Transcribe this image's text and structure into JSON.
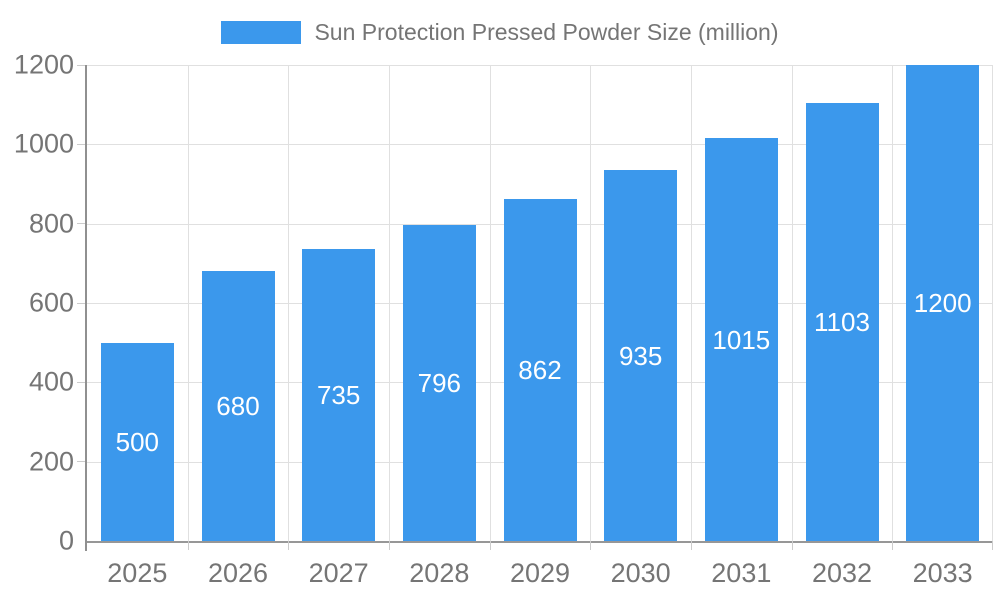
{
  "chart_data": {
    "type": "bar",
    "title": "Sun Protection Pressed Powder Size (million)",
    "categories": [
      "2025",
      "2026",
      "2027",
      "2028",
      "2029",
      "2030",
      "2031",
      "2032",
      "2033"
    ],
    "values": [
      500,
      680,
      735,
      796,
      862,
      935,
      1015,
      1103,
      1200
    ],
    "xlabel": "",
    "ylabel": "",
    "ylim": [
      0,
      1200
    ],
    "yticks": [
      0,
      200,
      400,
      600,
      800,
      1000,
      1200
    ],
    "grid": true,
    "legend_position": "top-center",
    "legend_entries": [
      "Sun Protection Pressed Powder Size (million)"
    ],
    "colors": {
      "bar": "#3B98EC",
      "bar_label": "#FFFFFF",
      "tick_label": "#757575",
      "legend_text": "#757575",
      "gridline": "#E0E0E0",
      "tick_mark": "#CCCCCC",
      "axis": "#909090",
      "background": "#FFFFFF"
    }
  }
}
